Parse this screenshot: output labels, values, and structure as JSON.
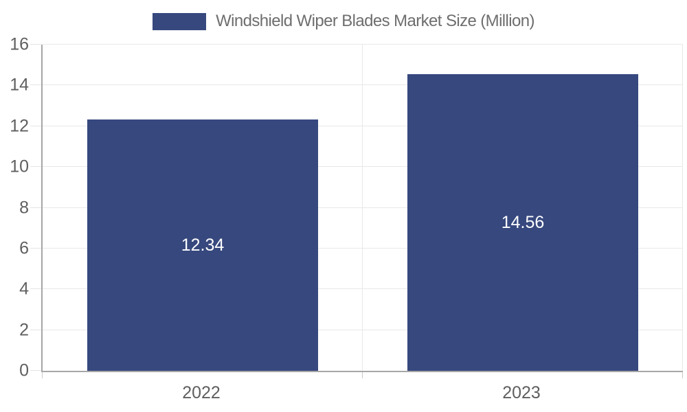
{
  "legend": {
    "label": "Windshield Wiper Blades Market Size (Million)",
    "swatch_color": "#37487e"
  },
  "chart_data": {
    "type": "bar",
    "title": "",
    "xlabel": "",
    "ylabel": "",
    "categories": [
      "2022",
      "2023"
    ],
    "series": [
      {
        "name": "Windshield Wiper Blades Market Size (Million)",
        "values": [
          12.34,
          14.56
        ],
        "value_labels": [
          "12.34",
          "14.56"
        ],
        "color": "#37487e"
      }
    ],
    "ylim": [
      0,
      16
    ],
    "y_ticks": [
      0,
      2,
      4,
      6,
      8,
      10,
      12,
      14,
      16
    ],
    "grid": true,
    "legend_position": "top-center",
    "value_label_position": "inside-center"
  },
  "colors": {
    "bar": "#37487e",
    "axis_line": "#a6a6a6",
    "grid_line": "#e8e8e8",
    "tick_text": "#5f5f5f",
    "legend_text": "#6e6e6e",
    "value_label_text": "#ffffff",
    "background": "#ffffff"
  }
}
